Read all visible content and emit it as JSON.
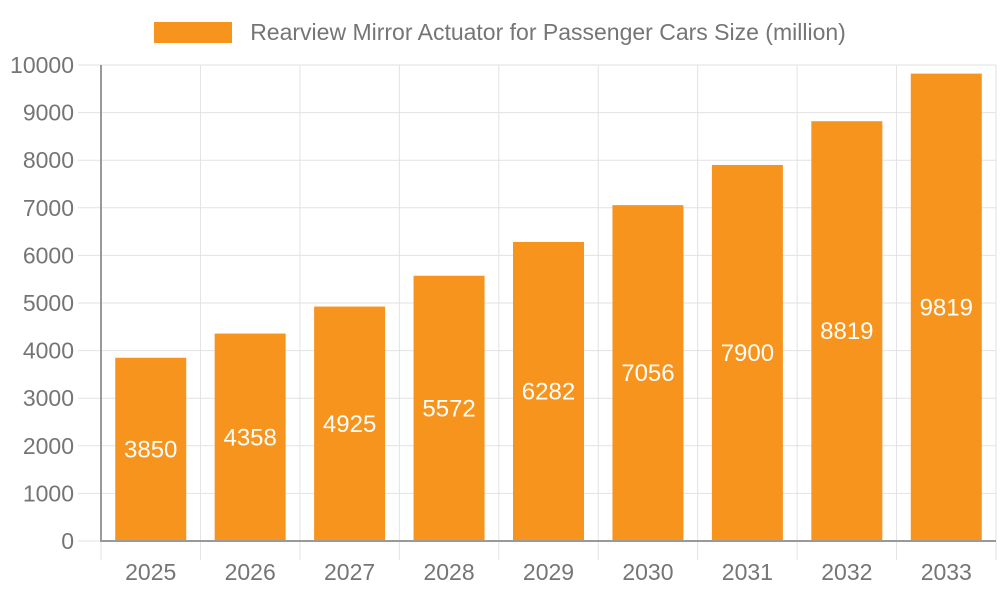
{
  "legend": {
    "label": "Rearview Mirror Actuator for Passenger Cars Size (million)"
  },
  "colors": {
    "bar": "#f7941e",
    "grid": "#e2e2e2",
    "axis": "#999999",
    "tick_label": "#757575",
    "legend_label": "#757575",
    "value_label": "#ffffff",
    "background": "#ffffff"
  },
  "chart_data": {
    "type": "bar",
    "title": "Rearview Mirror Actuator for Passenger Cars Size (million)",
    "xlabel": "",
    "ylabel": "",
    "categories": [
      "2025",
      "2026",
      "2027",
      "2028",
      "2029",
      "2030",
      "2031",
      "2032",
      "2033"
    ],
    "values": [
      3850,
      4358,
      4925,
      5572,
      6282,
      7056,
      7900,
      8819,
      9819
    ],
    "series": [
      {
        "name": "Rearview Mirror Actuator for Passenger Cars Size (million)",
        "values": [
          3850,
          4358,
          4925,
          5572,
          6282,
          7056,
          7900,
          8819,
          9819
        ]
      }
    ],
    "ylim": [
      0,
      10000
    ],
    "yticks": [
      0,
      1000,
      2000,
      3000,
      4000,
      5000,
      6000,
      7000,
      8000,
      9000,
      10000
    ],
    "grid": true,
    "legend_position": "top-center",
    "value_labels_position": "inside-middle",
    "bar_color": "#f7941e"
  }
}
